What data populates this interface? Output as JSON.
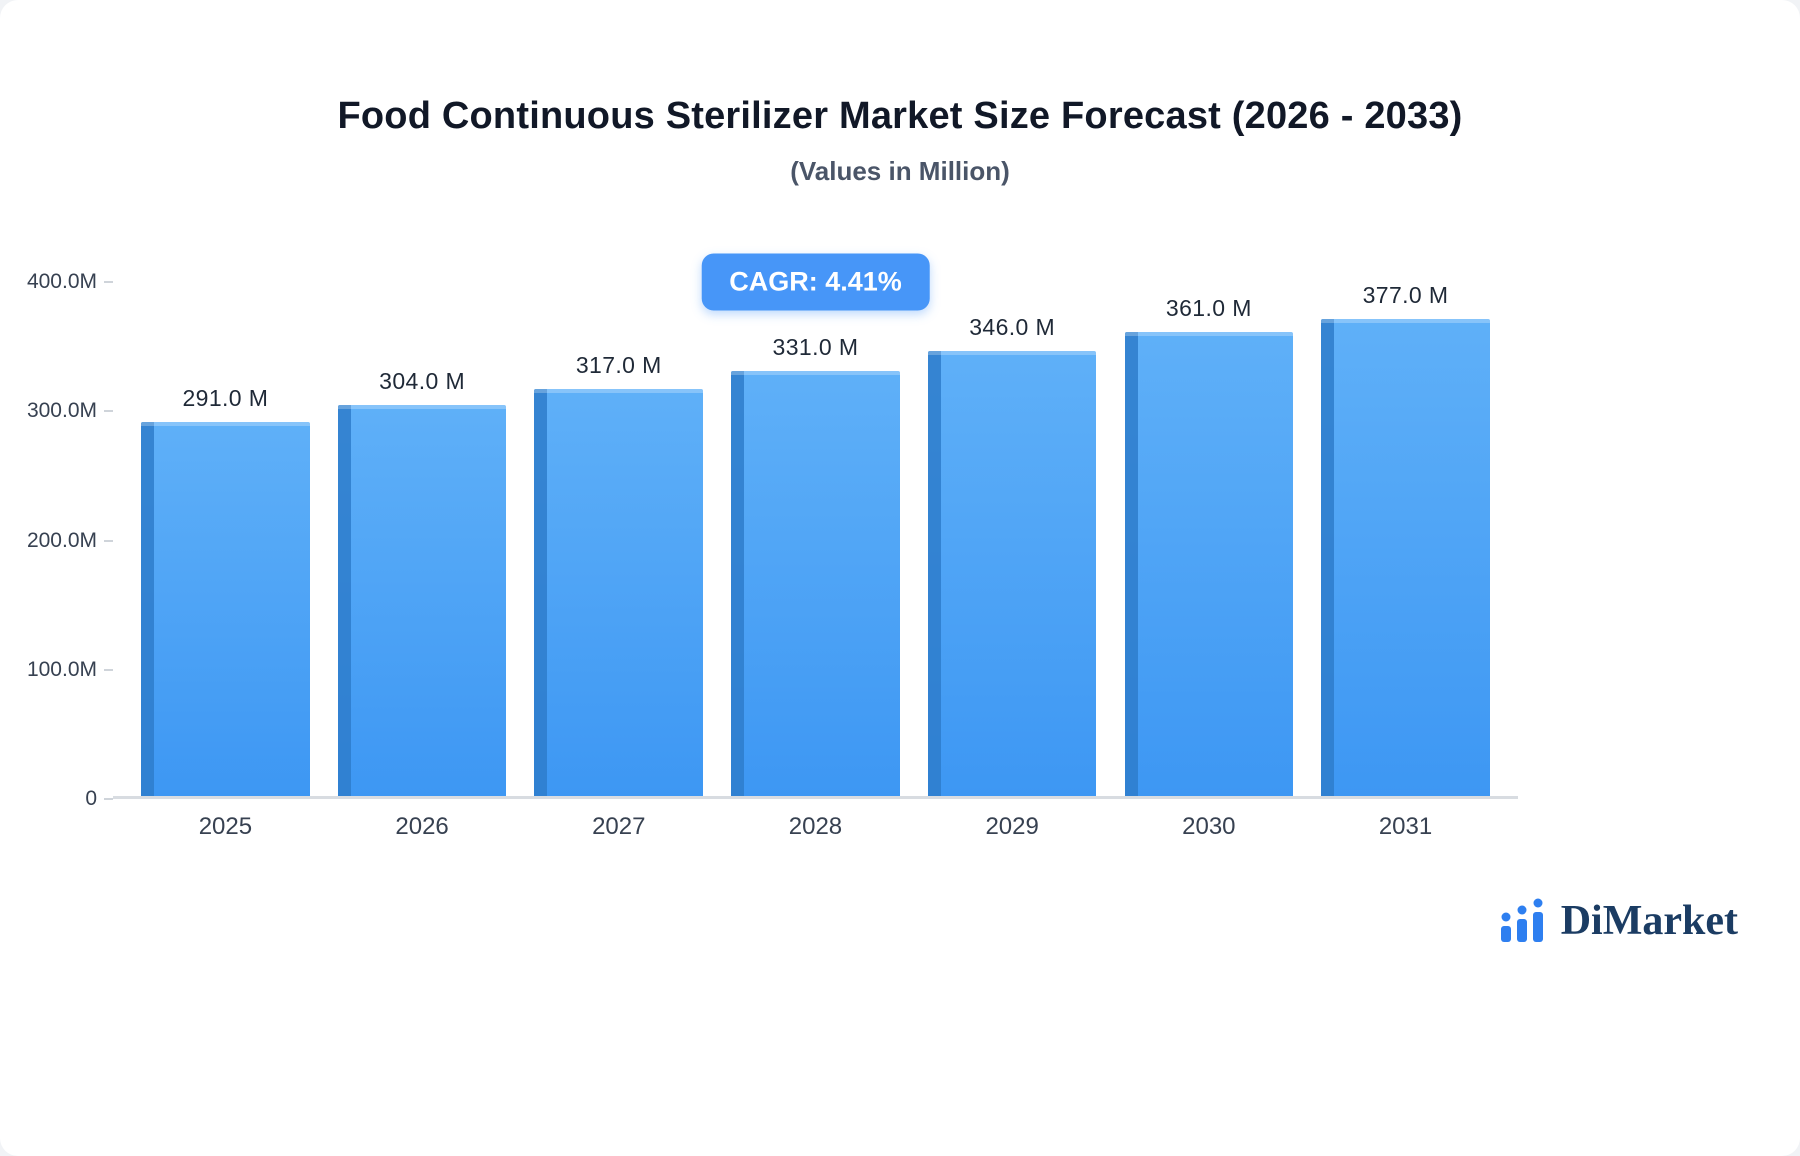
{
  "chart_data": {
    "type": "bar",
    "title": "Food Continuous Sterilizer Market Size Forecast (2026 - 2033)",
    "subtitle": "(Values in Million)",
    "cagr_label": "CAGR: 4.41%",
    "categories": [
      "2025",
      "2026",
      "2027",
      "2028",
      "2029",
      "2030",
      "2031"
    ],
    "values": [
      291,
      304,
      317,
      331,
      346,
      361,
      377
    ],
    "value_labels": [
      "291.0 M",
      "304.0 M",
      "317.0 M",
      "331.0 M",
      "346.0 M",
      "361.0 M",
      "377.0 M"
    ],
    "xlabel": "",
    "ylabel": "",
    "ylim": [
      0,
      400
    ],
    "yticks": [
      {
        "label": "400.0M",
        "value": 400
      },
      {
        "label": "300.0M",
        "value": 300
      },
      {
        "label": "200.0M",
        "value": 200
      },
      {
        "label": "100.0M",
        "value": 100
      },
      {
        "label": "0",
        "value": 0
      }
    ],
    "grid": false,
    "legend_position": "none",
    "bar_color_top": "#5fb0f8",
    "bar_color_bottom": "#3d97f3",
    "bar_edge_color": "#2e7ccb",
    "accent_color": "#4796f8"
  },
  "logo": {
    "text": "DiMarket",
    "icon": "dimarket-bars-icon",
    "text_color": "#1b3c63",
    "icon_color": "#2e7ff0"
  }
}
